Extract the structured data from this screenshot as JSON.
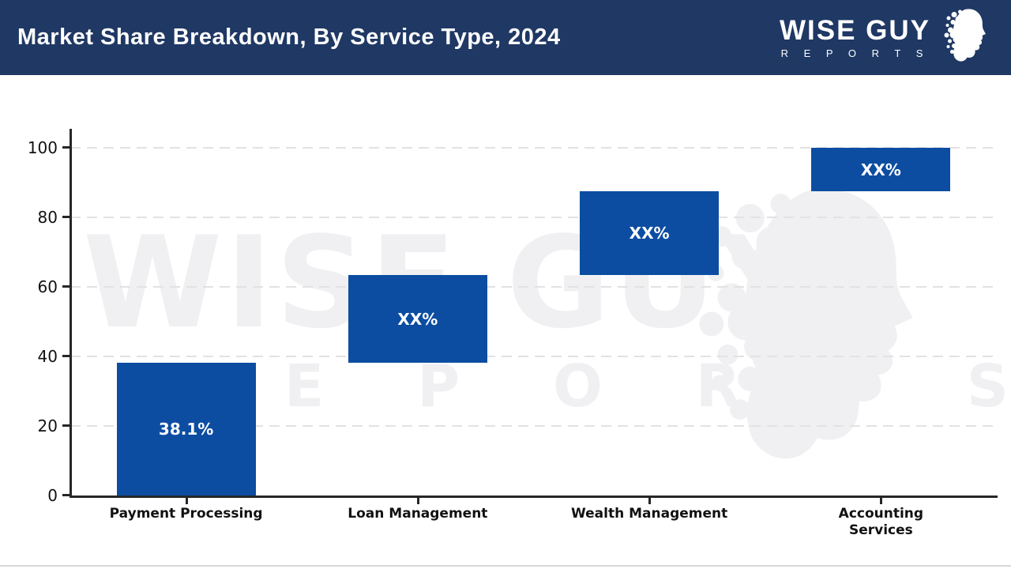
{
  "header": {
    "title": "Market Share Breakdown, By Service Type, 2024",
    "logo_line1": "WISE GUY",
    "logo_line2": "R E P O R T S"
  },
  "watermark": {
    "line1": "WISE GUY",
    "line2": "R E P O R T S"
  },
  "colors": {
    "header_bg": "#1f3864",
    "bar": "#0c4da2",
    "axis": "#262626",
    "grid": "#e2e2e2",
    "watermark": "#f0f0f2",
    "label": "#111111",
    "bar_label": "#ffffff",
    "footer_line": "#d8d8d8"
  },
  "chart_data": {
    "type": "bar",
    "subtype": "waterfall",
    "title": "Market Share Breakdown, By Service Type, 2024",
    "categories": [
      "Payment Processing",
      "Loan Management",
      "Wealth Management",
      "Accounting\nServices"
    ],
    "bars": [
      {
        "category": "Payment Processing",
        "base": 0,
        "value": 38.1,
        "label": "38.1%"
      },
      {
        "category": "Loan Management",
        "base": 38.1,
        "value": 25.4,
        "label": "XX%"
      },
      {
        "category": "Wealth Management",
        "base": 63.5,
        "value": 24.0,
        "label": "XX%"
      },
      {
        "category": "Accounting Services",
        "base": 87.5,
        "value": 12.5,
        "label": "XX%"
      }
    ],
    "yticks": [
      0,
      20,
      40,
      60,
      80,
      100
    ],
    "ylim": [
      0,
      100
    ],
    "xlabel": "",
    "ylabel": "",
    "grid": "horizontal-dashed",
    "legend": null
  }
}
